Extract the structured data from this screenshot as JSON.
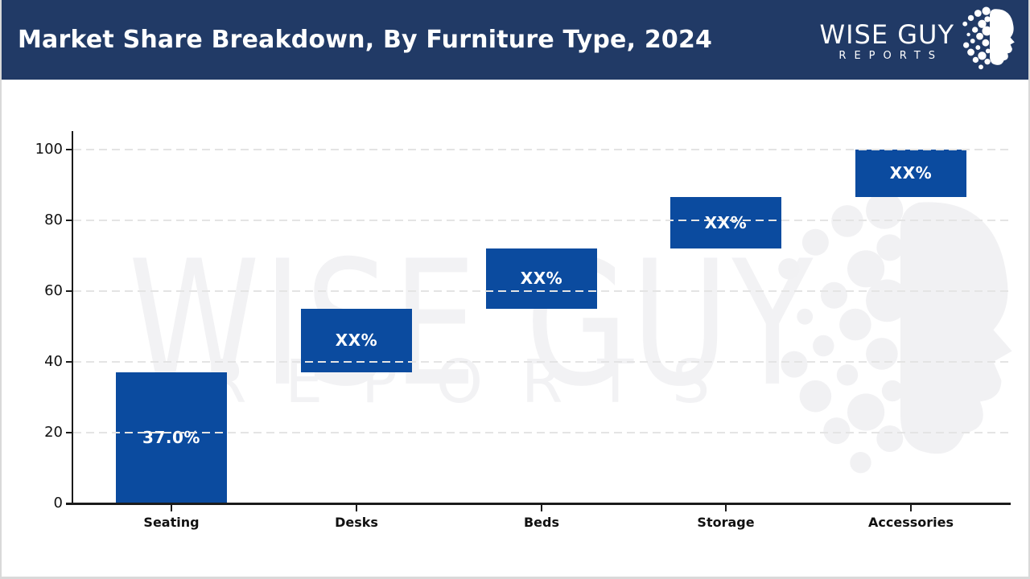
{
  "header": {
    "title": "Market Share Breakdown, By Furniture Type, 2024",
    "logo_line1": "WISE GUY",
    "logo_line2": "REPORTS",
    "bg_color": "#213a66"
  },
  "watermark": {
    "line1": "WISE GUY",
    "line2": "REPORTS"
  },
  "chart_data": {
    "type": "bar",
    "subtype": "waterfall",
    "title": "Market Share Breakdown, By Furniture Type, 2024",
    "categories": [
      "Seating",
      "Desks",
      "Beds",
      "Storage",
      "Accessories"
    ],
    "segments": [
      {
        "category": "Seating",
        "start": 0,
        "end": 37,
        "value": 37.0,
        "label": "37.0%"
      },
      {
        "category": "Desks",
        "start": 37,
        "end": 55,
        "value": 18.0,
        "label": "XX%"
      },
      {
        "category": "Beds",
        "start": 55,
        "end": 72,
        "value": 17.0,
        "label": "XX%"
      },
      {
        "category": "Storage",
        "start": 72,
        "end": 86.5,
        "value": 14.5,
        "label": "XX%"
      },
      {
        "category": "Accessories",
        "start": 86.5,
        "end": 100,
        "value": 13.5,
        "label": "XX%"
      }
    ],
    "yticks": [
      0,
      20,
      40,
      60,
      80,
      100
    ],
    "ylim": [
      0,
      105
    ],
    "xlabel": "",
    "ylabel": "",
    "grid": "dashed-horizontal",
    "legend": "none",
    "bar_color": "#0b4b9f",
    "bar_label_color": "#ffffff",
    "axis_color": "#1b1b1b",
    "gridline_color": "#e4e4e4"
  }
}
